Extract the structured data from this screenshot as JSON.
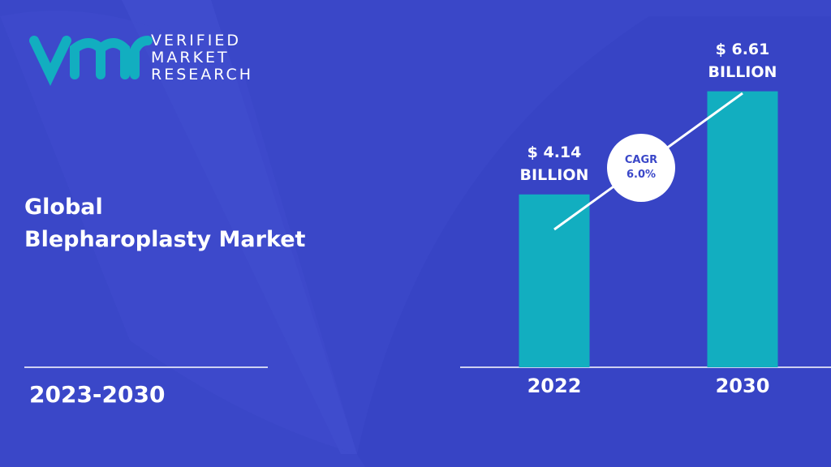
{
  "brand": "VERIFIED\nMARKET\nRESEARCH",
  "period": "2023-2030",
  "chart_data": {
    "type": "bar",
    "title": "Global\nBlepharoplasty Market",
    "categories": [
      "2022",
      "2030"
    ],
    "values": [
      4.14,
      6.61
    ],
    "value_labels": [
      "$ 4.14\nBILLION",
      "$ 6.61\nBILLION"
    ],
    "color": "#12aec0",
    "annotation": "CAGR\n6.0%"
  }
}
